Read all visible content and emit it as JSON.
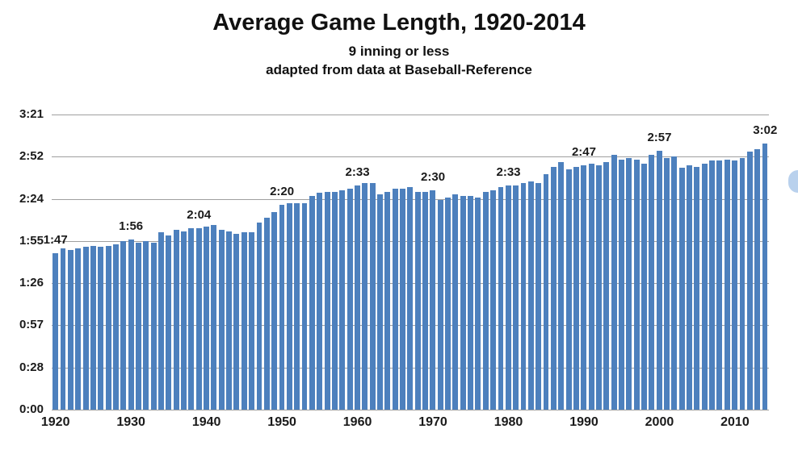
{
  "chart_data": {
    "type": "bar",
    "title": "Average Game Length, 1920-2014",
    "subtitle": "9 inning or less",
    "attribution": "adapted from data at Baseball-Reference",
    "xlabel": "",
    "ylabel": "",
    "legend": "none",
    "grid": "horizontal",
    "value_format": "h:mm",
    "ylim_minutes": [
      0,
      201.6
    ],
    "categories": [
      1920,
      1921,
      1922,
      1923,
      1924,
      1925,
      1926,
      1927,
      1928,
      1929,
      1930,
      1931,
      1932,
      1933,
      1934,
      1935,
      1936,
      1937,
      1938,
      1939,
      1940,
      1941,
      1942,
      1943,
      1944,
      1945,
      1946,
      1947,
      1948,
      1949,
      1950,
      1951,
      1952,
      1953,
      1954,
      1955,
      1956,
      1957,
      1958,
      1959,
      1960,
      1961,
      1962,
      1963,
      1964,
      1965,
      1966,
      1967,
      1968,
      1969,
      1970,
      1971,
      1972,
      1973,
      1974,
      1975,
      1976,
      1977,
      1978,
      1979,
      1980,
      1981,
      1982,
      1983,
      1984,
      1985,
      1986,
      1987,
      1988,
      1989,
      1990,
      1991,
      1992,
      1993,
      1994,
      1995,
      1996,
      1997,
      1998,
      1999,
      2000,
      2001,
      2002,
      2003,
      2004,
      2005,
      2006,
      2007,
      2008,
      2009,
      2010,
      2011,
      2012,
      2013,
      2014
    ],
    "values_minutes": [
      107,
      110,
      109,
      110,
      111,
      112,
      111,
      112,
      113,
      115,
      116,
      114,
      115,
      114,
      121,
      119,
      123,
      122,
      124,
      124,
      125,
      126,
      123,
      122,
      120,
      121,
      121,
      128,
      131,
      135,
      140,
      141,
      141,
      141,
      146,
      148,
      149,
      149,
      150,
      151,
      153,
      155,
      155,
      147,
      149,
      151,
      151,
      152,
      149,
      149,
      150,
      143,
      145,
      147,
      146,
      146,
      145,
      149,
      150,
      152,
      153,
      153,
      155,
      156,
      155,
      161,
      166,
      169,
      164,
      166,
      167,
      168,
      167,
      169,
      174,
      171,
      172,
      171,
      168,
      174,
      177,
      172,
      173,
      165,
      167,
      166,
      168,
      170,
      170,
      171,
      170,
      172,
      176,
      178,
      182
    ],
    "data_labels": [
      {
        "year": 1920,
        "label": "1:47"
      },
      {
        "year": 1930,
        "label": "1:56"
      },
      {
        "year": 1939,
        "label": "2:04"
      },
      {
        "year": 1950,
        "label": "2:20"
      },
      {
        "year": 1960,
        "label": "2:33"
      },
      {
        "year": 1970,
        "label": "2:30"
      },
      {
        "year": 1980,
        "label": "2:33"
      },
      {
        "year": 1990,
        "label": "2:47"
      },
      {
        "year": 2000,
        "label": "2:57"
      },
      {
        "year": 2014,
        "label": "3:02"
      }
    ],
    "y_ticks": [
      {
        "label": "0:00",
        "minutes": 0
      },
      {
        "label": "0:28",
        "minutes": 28.8
      },
      {
        "label": "0:57",
        "minutes": 57.6
      },
      {
        "label": "1:26",
        "minutes": 86.4
      },
      {
        "label": "1:55",
        "minutes": 115.2
      },
      {
        "label": "2:24",
        "minutes": 144
      },
      {
        "label": "2:52",
        "minutes": 172.8
      },
      {
        "label": "3:21",
        "minutes": 201.6
      }
    ],
    "x_ticks": [
      {
        "label": "1920",
        "year": 1920
      },
      {
        "label": "1930",
        "year": 1930
      },
      {
        "label": "1940",
        "year": 1940
      },
      {
        "label": "1950",
        "year": 1950
      },
      {
        "label": "1960",
        "year": 1960
      },
      {
        "label": "1970",
        "year": 1970
      },
      {
        "label": "1980",
        "year": 1980
      },
      {
        "label": "1990",
        "year": 1990
      },
      {
        "label": "2000",
        "year": 2000
      },
      {
        "label": "2010",
        "year": 2010
      }
    ],
    "colors": {
      "bar": "#4d80bd",
      "gridline": "#9f9f9f",
      "axis": "#7f7f7f",
      "text": "#1a1a1a",
      "clipped_artifact": "#b9d1ed"
    }
  }
}
